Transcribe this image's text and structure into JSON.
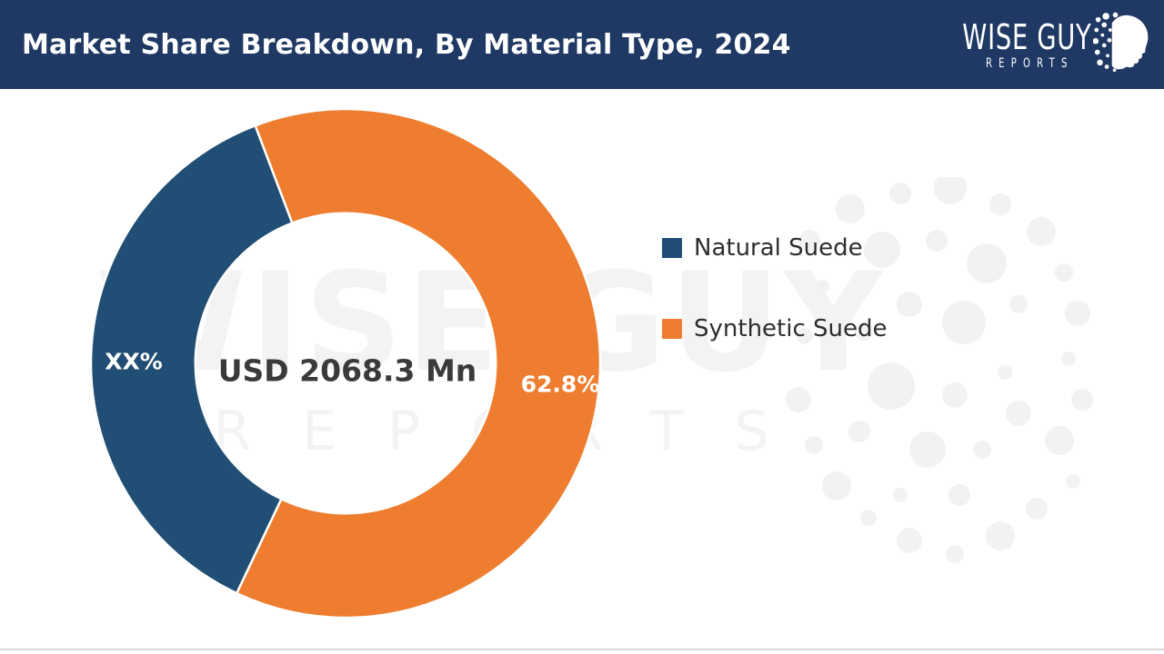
{
  "header": {
    "title": "Market Share Breakdown, By Material Type, 2024",
    "logo": {
      "name": "WISE GUY",
      "sub": "REPORTS"
    }
  },
  "theme": {
    "header_bg": "#1F3864",
    "accent_blue": "#214E74",
    "accent_orange": "#EE7D2F",
    "text_dark": "#3A3A3A",
    "watermark_gray": "#F3F3F3"
  },
  "chart_data": {
    "type": "pie",
    "title": "Market Share Breakdown, By Material Type, 2024",
    "center_label": "USD 2068.3 Mn",
    "donut_hole_ratio": 0.59,
    "rotation_deg": 205.3,
    "legend_position": "right",
    "slices": [
      {
        "name": "Natural Suede",
        "label": "XX%",
        "value_pct": 37.2,
        "color": "#214E74"
      },
      {
        "name": "Synthetic Suede",
        "label": "62.8%",
        "value_pct": 62.8,
        "color": "#EE7D2F"
      }
    ]
  },
  "watermark": {
    "line1": "WISE GUY",
    "line2": "REPORTS"
  }
}
